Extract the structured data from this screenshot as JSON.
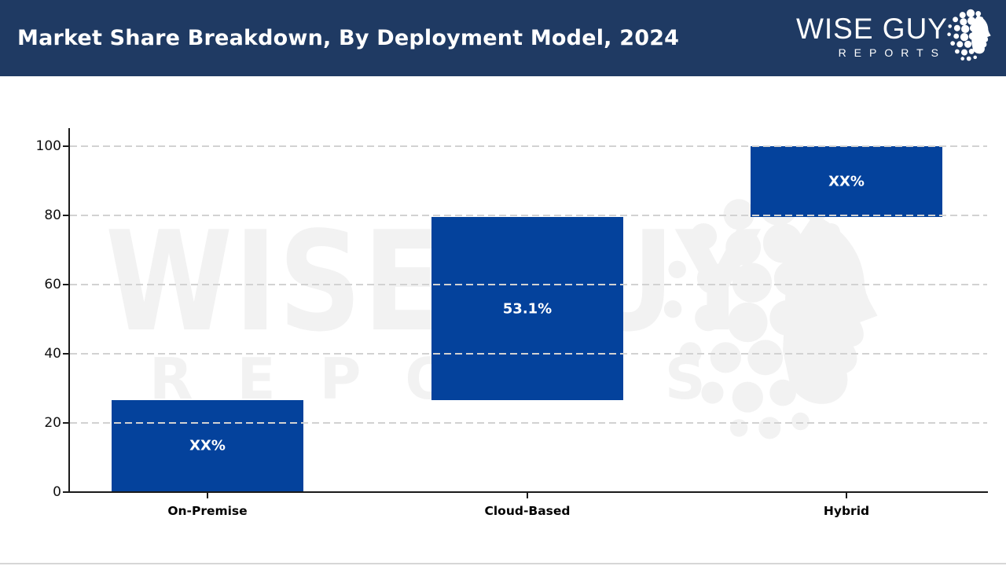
{
  "header": {
    "title": "Market Share Breakdown, By Deployment Model, 2024",
    "bg_color": "#1f3a63",
    "logo": {
      "line1": "WISE GUY",
      "line2": "REPORTS"
    }
  },
  "watermark": {
    "line1": "WISE GUY",
    "line2": "REPORTS"
  },
  "chart_data": {
    "type": "bar",
    "subtype": "waterfall",
    "title": "Market Share Breakdown, By Deployment Model, 2024",
    "categories": [
      "On-Premise",
      "Cloud-Based",
      "Hybrid"
    ],
    "bars": [
      {
        "category": "On-Premise",
        "start": 0,
        "end": 26.4,
        "label": "XX%"
      },
      {
        "category": "Cloud-Based",
        "start": 26.4,
        "end": 79.5,
        "label": "53.1%"
      },
      {
        "category": "Hybrid",
        "start": 79.5,
        "end": 100,
        "label": "XX%"
      }
    ],
    "ylim": [
      0,
      100
    ],
    "yticks": [
      0,
      20,
      40,
      60,
      80,
      100
    ],
    "xlabel": "",
    "ylabel": "",
    "legend": "none",
    "grid": "horizontal dashed lines drawn above bars",
    "bar_color": "#04429c",
    "axis_color": "#1a1a1a",
    "grid_color": "#d2d2d2",
    "label_color_on_bar": "#ffffff"
  }
}
